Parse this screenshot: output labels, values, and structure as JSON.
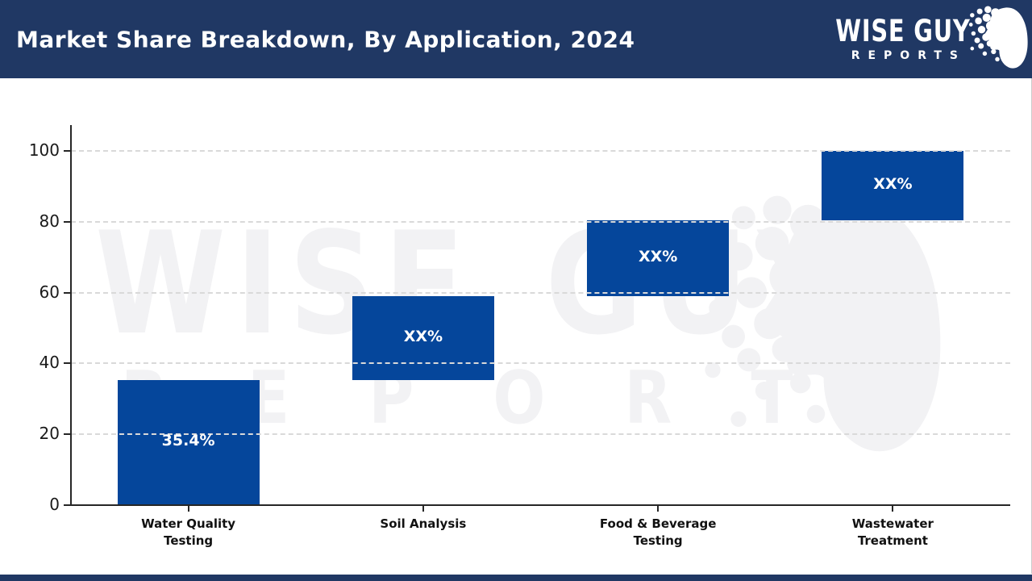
{
  "theme": {
    "navy": "#203864",
    "bar_blue": "#05469b",
    "gridline_gray": "#d9d9d9",
    "watermark_gray": "#f2f2f4"
  },
  "header": {
    "title": "Market Share Breakdown, By Application, 2024",
    "logo": {
      "wordmark": "WISE GUY",
      "reports": "REPORTS"
    }
  },
  "watermark": {
    "wordmark": "WISE GUY",
    "reports": "R E P O R T S"
  },
  "chart_data": {
    "type": "bar",
    "subtype": "waterfall",
    "title": "Market Share Breakdown, By Application, 2024",
    "categories": [
      "Water Quality\nTesting",
      "Soil Analysis",
      "Food & Beverage\nTesting",
      "Wastewater\nTreatment"
    ],
    "segments": [
      {
        "category": "Water Quality Testing",
        "start": 0,
        "end": 35.4,
        "label": "35.4%"
      },
      {
        "category": "Soil Analysis",
        "start": 35.4,
        "end": 59.0,
        "label": "XX%"
      },
      {
        "category": "Food & Beverage Testing",
        "start": 59.0,
        "end": 80.5,
        "label": "XX%"
      },
      {
        "category": "Wastewater Treatment",
        "start": 80.5,
        "end": 100.0,
        "label": "XX%"
      }
    ],
    "y_ticks": [
      0,
      20,
      40,
      60,
      80,
      100
    ],
    "ylim": [
      0,
      107
    ],
    "xlabel": "",
    "ylabel": "",
    "grid": "horizontal-dashed",
    "bar_color": "#05469b",
    "bar_value_label_color": "#ffffff",
    "legend": null
  }
}
